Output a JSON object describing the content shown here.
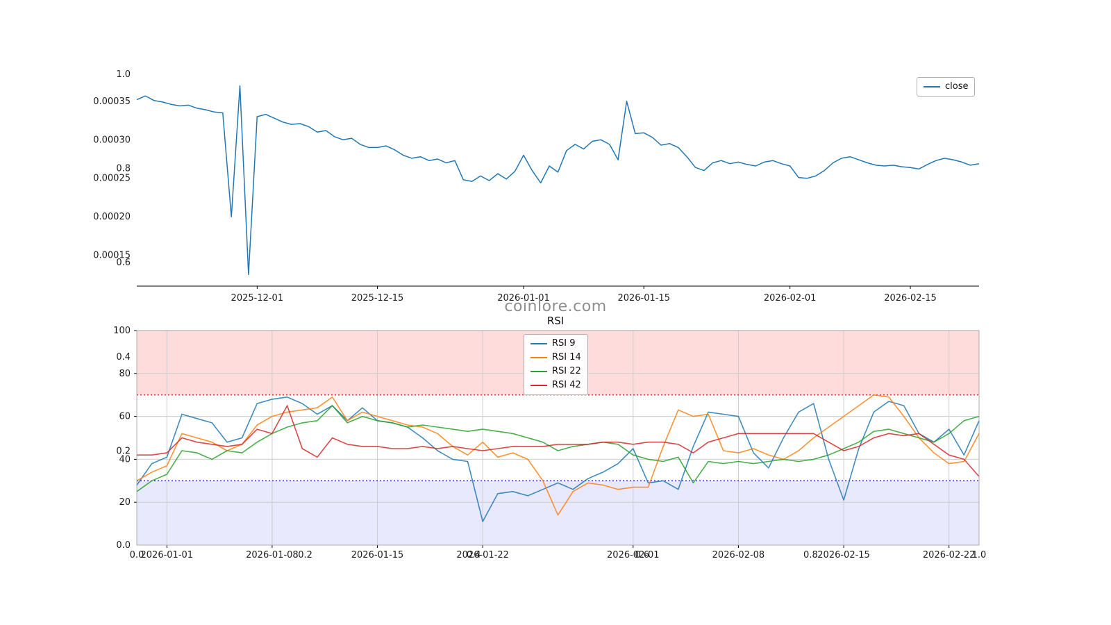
{
  "watermark": "coinlore.com",
  "overlay_axis": {
    "left_ticks": [
      "1.0",
      "0.8",
      "0.6",
      "0.4",
      "0.2",
      "0.0"
    ],
    "bottom_ticks": [
      "0.0",
      "0.2",
      "0.4",
      "0.6",
      "0.8",
      "1.0"
    ]
  },
  "chart_data": [
    {
      "type": "line",
      "name": "price",
      "title": "",
      "ylabel": "",
      "xlabel": "",
      "ylim": [
        0.00011,
        0.000385
      ],
      "grid": false,
      "legend_position": "upper right",
      "yticks": [
        {
          "value": 0.00015,
          "label": "0.00015"
        },
        {
          "value": 0.0002,
          "label": "0.00020"
        },
        {
          "value": 0.00025,
          "label": "0.00025"
        },
        {
          "value": 0.0003,
          "label": "0.00030"
        },
        {
          "value": 0.00035,
          "label": "0.00035"
        }
      ],
      "xticks": [
        {
          "label": "2025-12-01",
          "pos": 0.1429
        },
        {
          "label": "2025-12-15",
          "pos": 0.2857
        },
        {
          "label": "2026-01-01",
          "pos": 0.4592
        },
        {
          "label": "2026-01-15",
          "pos": 0.602
        },
        {
          "label": "2026-02-01",
          "pos": 0.7755
        },
        {
          "label": "2026-02-15",
          "pos": 0.9184
        }
      ],
      "series": [
        {
          "name": "close",
          "color": "#1f77b4",
          "values": [
            0.000352,
            0.000357,
            0.000351,
            0.000349,
            0.000346,
            0.000344,
            0.000345,
            0.000341,
            0.000339,
            0.000336,
            0.000335,
            0.0002,
            0.00037,
            0.000125,
            0.00033,
            0.000333,
            0.000328,
            0.000323,
            0.00032,
            0.000321,
            0.000317,
            0.00031,
            0.000312,
            0.000304,
            0.0003,
            0.000302,
            0.000294,
            0.00029,
            0.00029,
            0.000292,
            0.000287,
            0.00028,
            0.000276,
            0.000278,
            0.000273,
            0.000275,
            0.00027,
            0.000273,
            0.000248,
            0.000246,
            0.000253,
            0.000247,
            0.000256,
            0.000249,
            0.000259,
            0.00028,
            0.00026,
            0.000244,
            0.000266,
            0.000258,
            0.000286,
            0.000294,
            0.000288,
            0.000298,
            0.0003,
            0.000294,
            0.000274,
            0.00035,
            0.000308,
            0.000309,
            0.000303,
            0.000293,
            0.000295,
            0.00029,
            0.000278,
            0.000264,
            0.00026,
            0.00027,
            0.000273,
            0.000269,
            0.000271,
            0.000268,
            0.000266,
            0.000271,
            0.000273,
            0.000269,
            0.000266,
            0.000251,
            0.00025,
            0.000253,
            0.00026,
            0.00027,
            0.000276,
            0.000278,
            0.000274,
            0.00027,
            0.000267,
            0.000266,
            0.000267,
            0.000265,
            0.000264,
            0.000262,
            0.000268,
            0.000273,
            0.000276,
            0.000274,
            0.000271,
            0.000267,
            0.000269
          ]
        }
      ]
    },
    {
      "type": "line",
      "name": "rsi",
      "title": "RSI",
      "ylim": [
        0,
        100
      ],
      "grid": true,
      "legend_position": "upper center",
      "yticks": [
        {
          "value": 20,
          "label": "20"
        },
        {
          "value": 40,
          "label": "40"
        },
        {
          "value": 60,
          "label": "60"
        },
        {
          "value": 80,
          "label": "80"
        },
        {
          "value": 100,
          "label": "100"
        }
      ],
      "xticks": [
        {
          "label": "2026-01-01",
          "pos": 0.0357
        },
        {
          "label": "2026-01-08",
          "pos": 0.1607
        },
        {
          "label": "2026-01-15",
          "pos": 0.2857
        },
        {
          "label": "2026-01-22",
          "pos": 0.4107
        },
        {
          "label": "2026-02-01",
          "pos": 0.5893
        },
        {
          "label": "2026-02-08",
          "pos": 0.7143
        },
        {
          "label": "2026-02-15",
          "pos": 0.8393
        },
        {
          "label": "2026-02-22",
          "pos": 0.9643
        }
      ],
      "bands": [
        {
          "name": "overbought-band",
          "from": 70,
          "to": 100,
          "color": "rgba(255,40,40,0.16)"
        },
        {
          "name": "oversold-band",
          "from": 0,
          "to": 30,
          "color": "rgba(70,70,235,0.12)"
        }
      ],
      "thresholds": [
        {
          "name": "overbought-threshold-line",
          "value": 70,
          "color": "#cc2222"
        },
        {
          "name": "oversold-threshold-line",
          "value": 30,
          "color": "#2222cc"
        }
      ],
      "series": [
        {
          "name": "RSI 9",
          "color": "#1f77b4",
          "values": [
            28,
            38,
            41,
            61,
            59,
            57,
            48,
            50,
            66,
            68,
            69,
            66,
            61,
            65,
            58,
            64,
            58,
            57,
            55,
            50,
            44,
            40,
            39,
            11,
            24,
            25,
            23,
            26,
            29,
            26,
            31,
            34,
            38,
            45,
            29,
            30,
            26,
            46,
            62,
            61,
            60,
            43,
            36,
            50,
            62,
            66,
            40,
            21,
            45,
            62,
            67,
            65,
            52,
            48,
            54,
            42,
            58
          ]
        },
        {
          "name": "RSI 14",
          "color": "#ff7f0e",
          "values": [
            30,
            34,
            37,
            52,
            50,
            48,
            44,
            47,
            56,
            60,
            62,
            63,
            64,
            69,
            58,
            62,
            60,
            58,
            56,
            55,
            52,
            46,
            42,
            48,
            41,
            43,
            40,
            30,
            14,
            25,
            29,
            28,
            26,
            27,
            27,
            46,
            63,
            60,
            61,
            44,
            43,
            45,
            42,
            40,
            44,
            50,
            55,
            60,
            65,
            70,
            69,
            60,
            50,
            43,
            38,
            39,
            52
          ]
        },
        {
          "name": "RSI 22",
          "color": "#2ca02c",
          "values": [
            25,
            30,
            33,
            44,
            43,
            40,
            44,
            43,
            48,
            52,
            55,
            57,
            58,
            65,
            57,
            60,
            58,
            57,
            55,
            56,
            55,
            54,
            53,
            54,
            53,
            52,
            50,
            48,
            44,
            46,
            47,
            48,
            47,
            42,
            40,
            39,
            41,
            29,
            39,
            38,
            39,
            38,
            39,
            40,
            39,
            40,
            42,
            45,
            48,
            53,
            54,
            52,
            50,
            48,
            52,
            58,
            60
          ]
        },
        {
          "name": "RSI 42",
          "color": "#d62728",
          "values": [
            42,
            42,
            43,
            50,
            48,
            47,
            46,
            47,
            54,
            52,
            65,
            45,
            41,
            50,
            47,
            46,
            46,
            45,
            45,
            46,
            45,
            46,
            45,
            44,
            45,
            46,
            46,
            46,
            47,
            47,
            47,
            48,
            48,
            47,
            48,
            48,
            47,
            43,
            48,
            50,
            52,
            52,
            52,
            52,
            52,
            52,
            48,
            44,
            46,
            50,
            52,
            51,
            52,
            47,
            42,
            40,
            32
          ]
        }
      ]
    }
  ]
}
